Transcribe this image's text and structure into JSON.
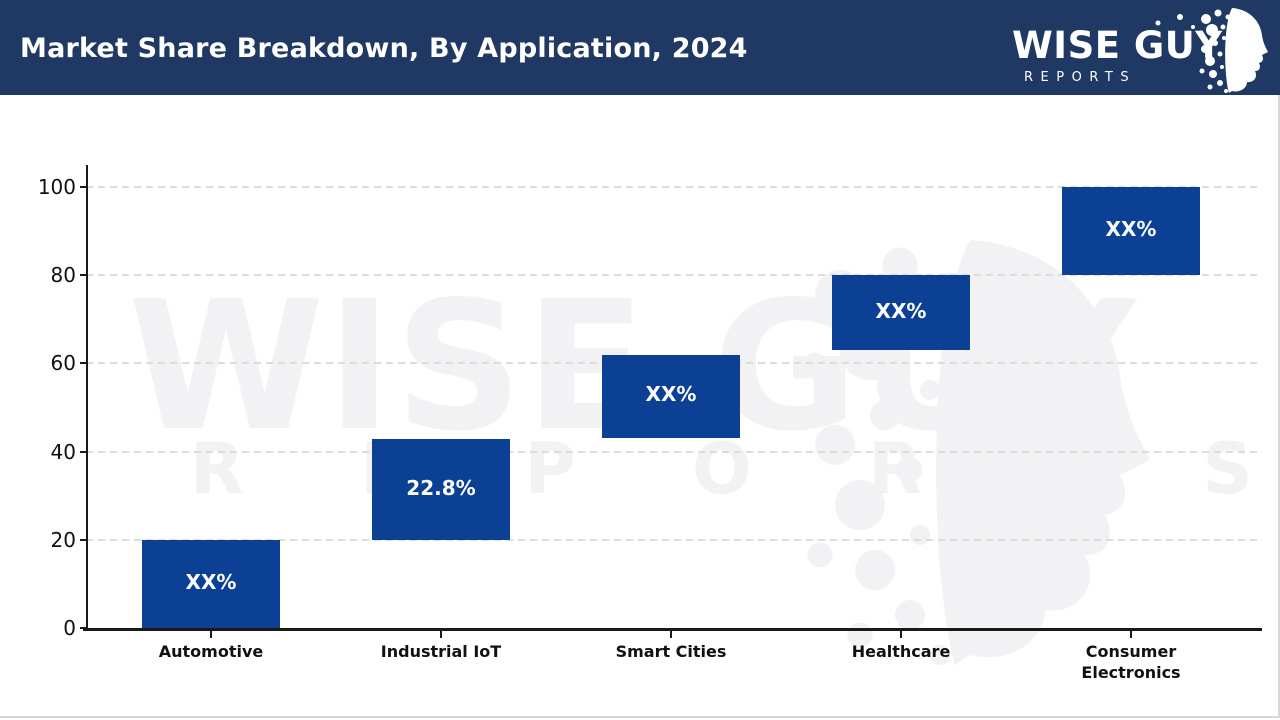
{
  "header": {
    "title": "Market Share Breakdown, By Application, 2024",
    "logo": {
      "name": "WISE GUY",
      "tagline": "R E P O R T S"
    }
  },
  "watermark": {
    "line1": "WISE GUY",
    "line2": "R E P O R T S"
  },
  "colors": {
    "header_bg": "#203864",
    "bar": "#0b4095",
    "axis": "#1a1a1a",
    "grid": "#dcdcdc",
    "bar_label_text": "#ffffff",
    "tick_text": "#111111",
    "watermark": "#f2f2f5"
  },
  "chart_data": {
    "type": "bar",
    "subtype": "waterfall",
    "title": "Market Share Breakdown, By Application, 2024",
    "xlabel": "",
    "ylabel": "",
    "categories": [
      "Automotive",
      "Industrial IoT",
      "Smart Cities",
      "Healthcare",
      "Consumer Electronics"
    ],
    "segments": [
      {
        "category": "Automotive",
        "start": 0,
        "end": 20,
        "label": "XX%"
      },
      {
        "category": "Industrial IoT",
        "start": 20,
        "end": 42.8,
        "label": "22.8%"
      },
      {
        "category": "Smart Cities",
        "start": 43,
        "end": 62,
        "label": "XX%"
      },
      {
        "category": "Healthcare",
        "start": 63,
        "end": 80,
        "label": "XX%"
      },
      {
        "category": "Consumer Electronics",
        "start": 80,
        "end": 100,
        "label": "XX%"
      }
    ],
    "yticks": [
      0,
      20,
      40,
      60,
      80,
      100
    ],
    "ylim": [
      0,
      105
    ],
    "grid": "dashed-horizontal",
    "legend": "none",
    "bar_color": "#0b4095"
  }
}
